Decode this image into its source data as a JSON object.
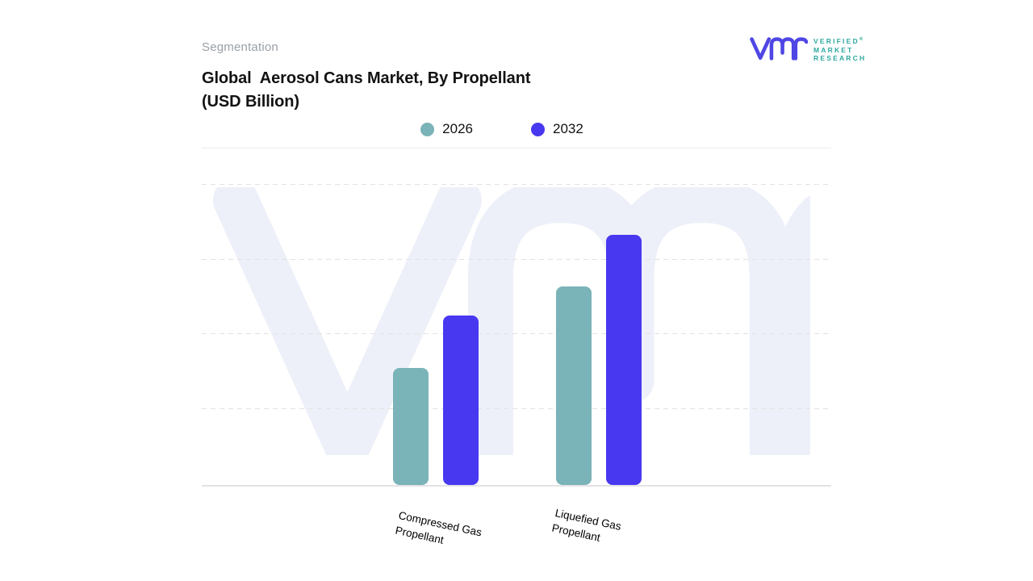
{
  "header": {
    "eyebrow": "Segmentation",
    "title": "Global  Aerosol Cans Market, By Propellant\n(USD Billion)"
  },
  "logo": {
    "glyph": "vmr-monogram",
    "lines": [
      "VERIFIED",
      "MARKET",
      "RESEARCH"
    ],
    "registered_mark": "®",
    "glyph_color": "#4f46e5",
    "text_color": "#2fa89f"
  },
  "legend": {
    "items": [
      {
        "label": "2026",
        "color": "#7ab3b8"
      },
      {
        "label": "2032",
        "color": "#4838f0"
      }
    ]
  },
  "chart_data": {
    "type": "bar",
    "title": "Global  Aerosol Cans Market, By Propellant (USD Billion)",
    "categories": [
      "Compressed Gas\nPropellant",
      "Liquefied Gas\nPropellant"
    ],
    "series": [
      {
        "name": "2026",
        "color": "#7ab3b8",
        "values": [
          1.56,
          2.65
        ]
      },
      {
        "name": "2032",
        "color": "#4838f0",
        "values": [
          2.27,
          3.34
        ]
      }
    ],
    "xlabel": "",
    "ylabel": "",
    "units": "USD Billion",
    "ylim": [
      0,
      4.1
    ],
    "y_axis_tick_labels_visible": false,
    "values_estimated_from_gridlines": true,
    "grid": "horizontal-dashed",
    "legend_position": "top-center"
  },
  "watermark": {
    "name": "vmr-logo-watermark",
    "color": "#eef0f9"
  }
}
